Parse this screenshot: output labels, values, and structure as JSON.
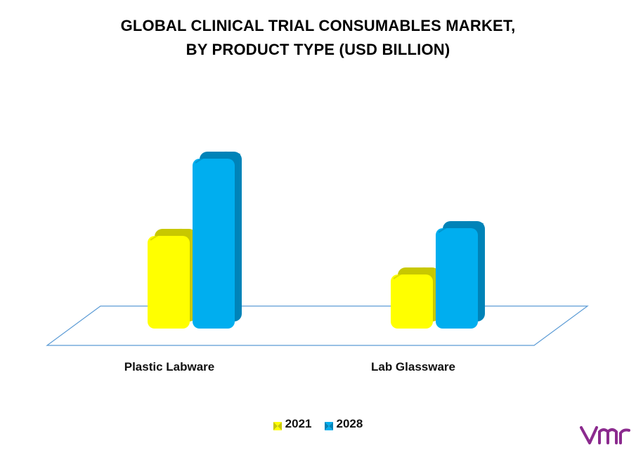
{
  "chart_data": {
    "type": "bar",
    "title_line1": "GLOBAL CLINICAL TRIAL CONSUMABLES MARKET,",
    "title_line2": "BY PRODUCT TYPE (USD BILLION)",
    "categories": [
      "Plastic Labware",
      "Lab Glassware"
    ],
    "series": [
      {
        "name": "2021",
        "values": [
          2.4,
          1.4
        ],
        "color": "#FFFF00",
        "shade": "#C8C800"
      },
      {
        "name": "2028",
        "values": [
          4.4,
          2.6
        ],
        "color": "#00AEEF",
        "shade": "#0083B8"
      }
    ],
    "ylim": [
      0,
      5
    ],
    "grid": false,
    "legend_position": "bottom",
    "style": "3d-bars-on-floor"
  },
  "logo": {
    "name": "vmr-logo",
    "color": "#8B2A8E"
  }
}
